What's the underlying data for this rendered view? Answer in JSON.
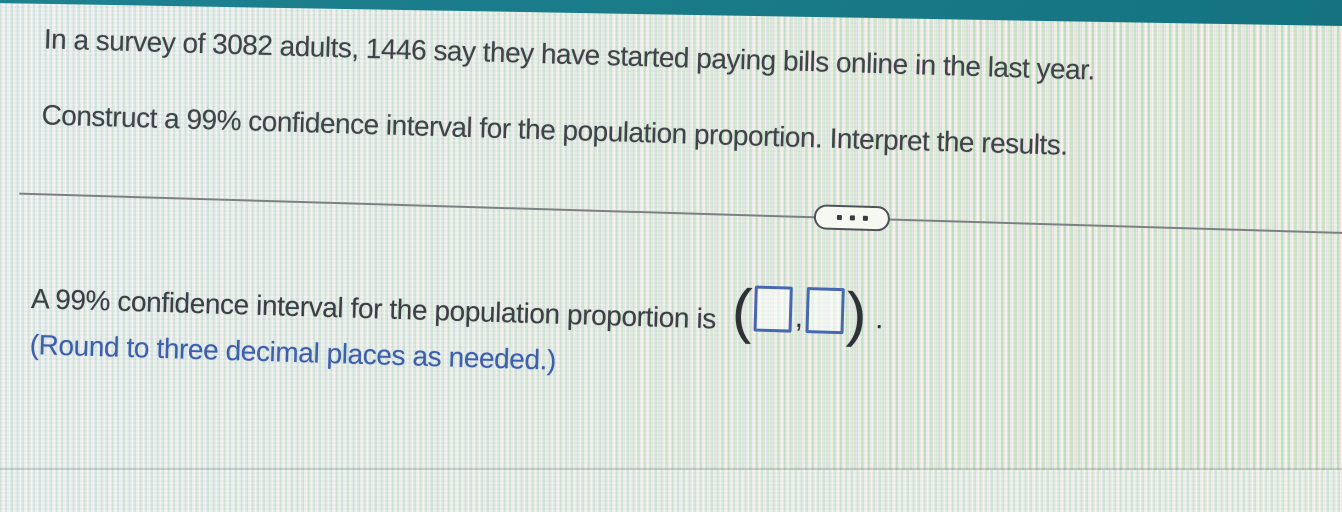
{
  "window": {
    "top_bar_color": "#1a7f8e"
  },
  "question": {
    "line1": "In a survey of 3082 adults, 1446 say they have started paying bills online in the last year.",
    "line2": "Construct a 99% confidence interval for the population proportion. Interpret the results."
  },
  "divider": {
    "handle_icon": "ellipsis-icon"
  },
  "answer": {
    "prompt": "A 99% confidence interval for the population proportion is",
    "open_paren": "(",
    "separator": ",",
    "close_paren": ")",
    "sentence_period": ".",
    "lower_value": "",
    "upper_value": "",
    "note": "(Round to three decimal places as needed.)"
  },
  "colors": {
    "top_bar": "#1a7f8e",
    "body_text": "#3f4449",
    "input_border": "#4668b2",
    "note_text": "#3c5fae",
    "divider_line": "#7d8082"
  }
}
